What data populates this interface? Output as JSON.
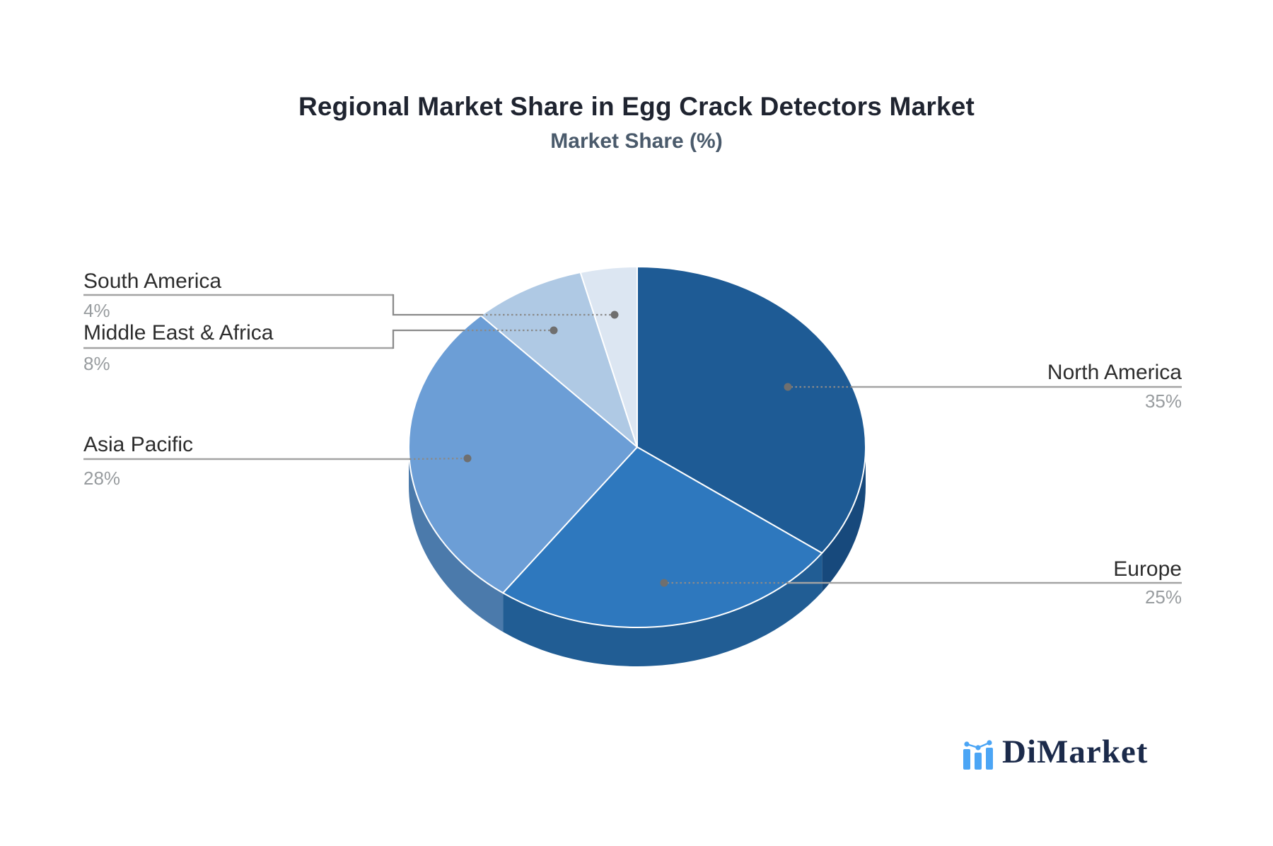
{
  "title": "Regional Market Share in Egg Crack Detectors Market",
  "subtitle": "Market Share (%)",
  "chart_data": {
    "type": "pie",
    "style": "3d-pie",
    "title": "Regional Market Share in Egg Crack Detectors Market",
    "subtitle": "Market Share (%)",
    "unit": "%",
    "start_angle_deg": 0,
    "direction": "clockwise",
    "legend_position": "callout-labels",
    "categories": [
      "North America",
      "Europe",
      "Asia Pacific",
      "Middle East & Africa",
      "South America"
    ],
    "values": [
      35,
      25,
      28,
      8,
      4
    ],
    "slices": [
      {
        "name": "North America",
        "value": 35,
        "label": "35%",
        "color": "#1E5B95",
        "side_color": "#17497C"
      },
      {
        "name": "Europe",
        "value": 25,
        "label": "25%",
        "color": "#2E78BE",
        "side_color": "#215D94"
      },
      {
        "name": "Asia Pacific",
        "value": 28,
        "label": "28%",
        "color": "#6C9ED6",
        "side_color": "#4B7AAB"
      },
      {
        "name": "Middle East & Africa",
        "value": 8,
        "label": "8%",
        "color": "#AFC9E4",
        "side_color": "#8BA6C2"
      },
      {
        "name": "South America",
        "value": 4,
        "label": "4%",
        "color": "#DCE6F2",
        "side_color": "#B8C6D8"
      }
    ],
    "leader_line_color": "#8a8a8a",
    "underline_color": "#a3a3a3",
    "dot_color": "#6f6f6f"
  },
  "logo": {
    "text": "DiMarket",
    "icon": "bar-line-chart-icon",
    "icon_color": "#4BA5F5",
    "text_color": "#1B2A4A"
  }
}
